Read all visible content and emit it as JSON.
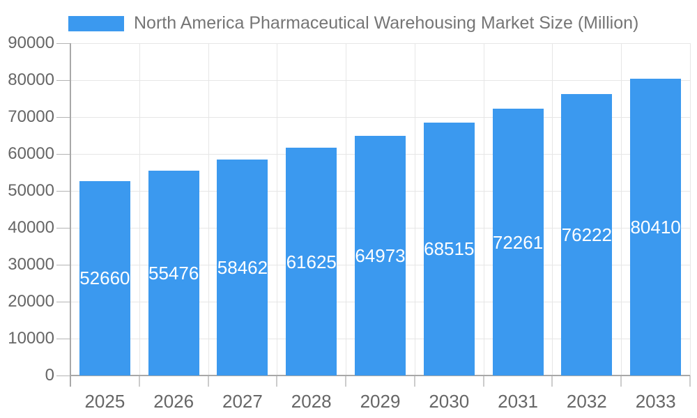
{
  "legend": {
    "label": "North America Pharmaceutical Warehousing Market Size (Million)"
  },
  "chart_data": {
    "type": "bar",
    "title": "North America Pharmaceutical Warehousing Market Size (Million)",
    "categories": [
      "2025",
      "2026",
      "2027",
      "2028",
      "2029",
      "2030",
      "2031",
      "2032",
      "2033"
    ],
    "values": [
      52660,
      55476,
      58462,
      61625,
      64973,
      68515,
      72261,
      76222,
      80410
    ],
    "value_labels": [
      "52660",
      "55476",
      "58462",
      "61625",
      "64973",
      "68515",
      "72261",
      "76222",
      "80410"
    ],
    "xlabel": "",
    "ylabel": "",
    "ylim": [
      0,
      90000
    ],
    "ytick_interval": 10000,
    "ytick_labels": [
      "0",
      "10000",
      "20000",
      "30000",
      "40000",
      "50000",
      "60000",
      "70000",
      "80000",
      "90000"
    ],
    "grid": true,
    "legend_position": "top-left",
    "bar_color": "#3B99EF",
    "value_label_color": "#ffffff",
    "axis_label_color": "#666666",
    "title_color": "#757575",
    "gridline_color": "#e6e6e6",
    "background_color": "#ffffff"
  }
}
